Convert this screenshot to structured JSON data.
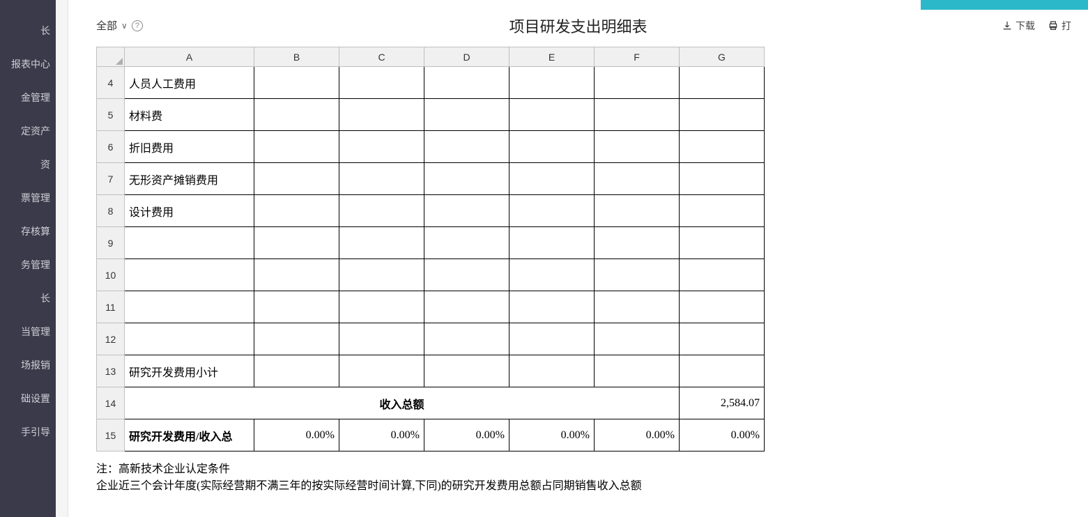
{
  "sidebar": {
    "items": [
      {
        "label": "长"
      },
      {
        "label": "报表中心"
      },
      {
        "label": "金管理"
      },
      {
        "label": "定资产"
      },
      {
        "label": "资"
      },
      {
        "label": "票管理"
      },
      {
        "label": "存核算"
      },
      {
        "label": "务管理"
      },
      {
        "label": "长"
      },
      {
        "label": "当管理"
      },
      {
        "label": "场报销"
      },
      {
        "label": "础设置"
      },
      {
        "label": "手引导"
      }
    ]
  },
  "header": {
    "filter_label": "全部",
    "title": "项目研发支出明细表",
    "download_label": "下载",
    "print_label": "打"
  },
  "sheet": {
    "columns": [
      "A",
      "B",
      "C",
      "D",
      "E",
      "F",
      "G"
    ],
    "row_numbers": [
      4,
      5,
      6,
      7,
      8,
      9,
      10,
      11,
      12,
      13,
      14,
      15
    ],
    "rows_labels": {
      "4": "人员人工费用",
      "5": "材料费",
      "6": "折旧费用",
      "7": "无形资产摊销费用",
      "8": "设计费用",
      "13": "研究开发费用小计",
      "15": "研究开发费用/收入总"
    },
    "row14_merged_label": "收入总额",
    "row14_G": "2,584.07",
    "row15_pct": [
      "0.00%",
      "0.00%",
      "0.00%",
      "0.00%",
      "0.00%",
      "0.00%"
    ],
    "notes": [
      "注：高新技术企业认定条件",
      "企业近三个会计年度(实际经营期不满三年的按实际经营时间计算,下同)的研究开发费用总额占同期销售收入总额"
    ]
  },
  "colors": {
    "sidebar_bg": "#3a3a4a",
    "teal": "#2bb9c9",
    "header_grid": "#bfbfbf",
    "cell_border": "#000000"
  }
}
